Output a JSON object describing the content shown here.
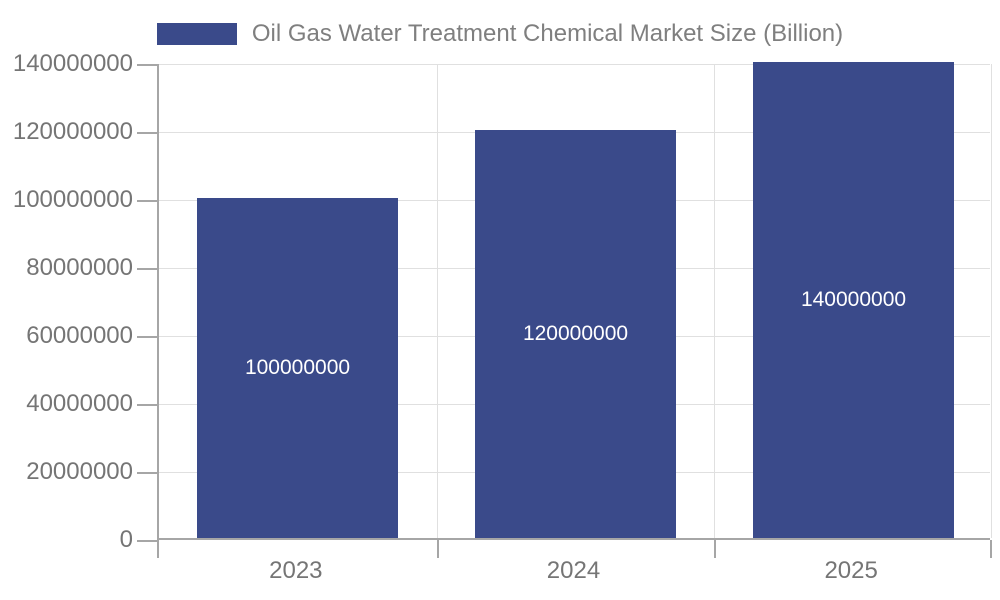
{
  "legend": {
    "label": "Oil Gas Water Treatment Chemical Market Size (Billion)"
  },
  "colors": {
    "bar": "#3A4A8A",
    "axis_line": "#a6a6a6",
    "grid_line": "#e0e0e0",
    "tick_text": "#757575",
    "legend_text": "#7f7f7f",
    "bar_label_text": "#ffffff",
    "background": "#ffffff"
  },
  "chart_data": {
    "type": "bar",
    "title": "Oil Gas Water Treatment Chemical Market Size (Billion)",
    "categories": [
      "2023",
      "2024",
      "2025"
    ],
    "series": [
      {
        "name": "Oil Gas Water Treatment Chemical Market Size (Billion)",
        "values": [
          100000000,
          120000000,
          140000000
        ]
      }
    ],
    "data_labels": [
      "100000000",
      "120000000",
      "140000000"
    ],
    "xlabel": "",
    "ylabel": "",
    "ylim": [
      0,
      140000000
    ],
    "yticks": [
      0,
      20000000,
      40000000,
      60000000,
      80000000,
      100000000,
      120000000,
      140000000
    ],
    "ytick_labels": [
      "0",
      "20000000",
      "40000000",
      "60000000",
      "80000000",
      "100000000",
      "120000000",
      "140000000"
    ],
    "grid": true,
    "legend_position": "top-center",
    "bar_label_position": "inside-center"
  }
}
